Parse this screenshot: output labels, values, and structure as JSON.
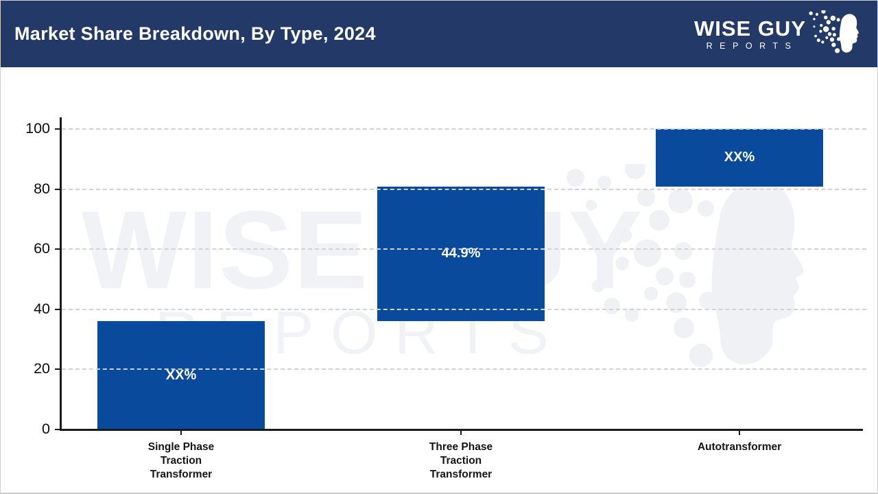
{
  "header": {
    "title": "Market Share Breakdown, By Type, 2024",
    "logo": {
      "line1": "WISE GUY",
      "line2": "REPORTS"
    }
  },
  "watermark": {
    "line1": "WISE GUY",
    "line2": "REPORTS"
  },
  "colors": {
    "header_bg": "#233a69",
    "bar": "#0a4a9c",
    "grid": "#d2d2d2",
    "axis": "#1a1a1a",
    "watermark": "#f0f2f5",
    "title_text": "#ffffff"
  },
  "chart_data": {
    "type": "bar",
    "subtype": "floating-waterfall-columns",
    "title": "Market Share Breakdown, By Type, 2024",
    "xlabel": "",
    "ylabel": "",
    "ylim": [
      0,
      100
    ],
    "yticks": [
      0,
      20,
      40,
      60,
      80,
      100
    ],
    "grid": "horizontal-dashed",
    "legend": "none",
    "bar_color": "#0a4a9c",
    "categories": [
      {
        "name": "Single Phase Traction Transformer",
        "lines": [
          "Single Phase",
          "Traction",
          "Transformer"
        ]
      },
      {
        "name": "Three Phase Traction Transformer",
        "lines": [
          "Three Phase",
          "Traction",
          "Transformer"
        ]
      },
      {
        "name": "Autotransformer",
        "lines": [
          "Autotransformer"
        ]
      }
    ],
    "series": [
      {
        "name": "Market share (%)",
        "segments": [
          {
            "from": 0,
            "to": 36,
            "label": "XX%"
          },
          {
            "from": 36,
            "to": 80.9,
            "label": "44.9%"
          },
          {
            "from": 80.9,
            "to": 100,
            "label": "XX%"
          }
        ]
      }
    ]
  }
}
